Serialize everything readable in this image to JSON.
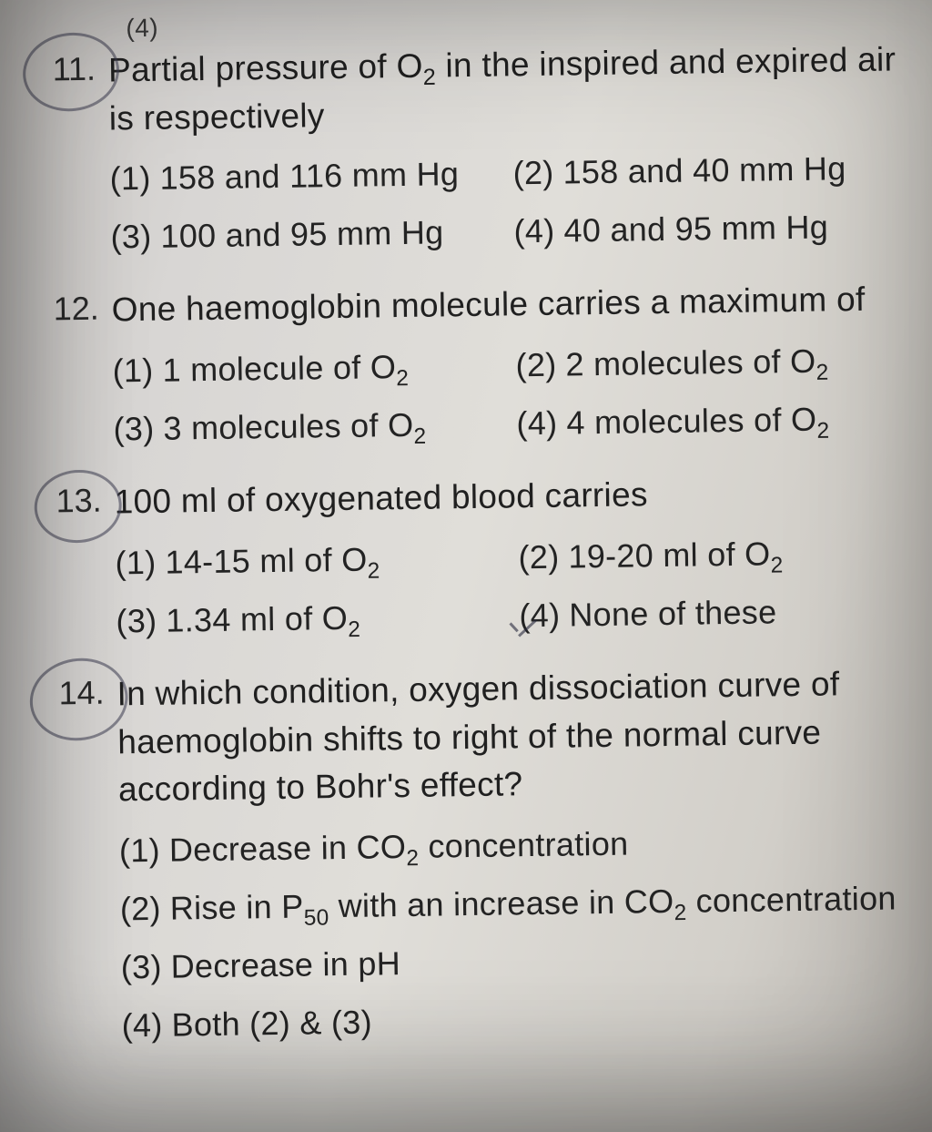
{
  "cutoff_text": "(4)",
  "questions": [
    {
      "number": "11.",
      "circled": true,
      "text_html": "Partial pressure of O<sub>2</sub> in the inspired and expired air is respectively",
      "options": [
        {
          "label": "(1)",
          "text_html": "158 and 116 mm Hg",
          "width": "half"
        },
        {
          "label": "(2)",
          "text_html": "158 and 40 mm Hg",
          "width": "half"
        },
        {
          "label": "(3)",
          "text_html": "100 and 95 mm Hg",
          "width": "half"
        },
        {
          "label": "(4)",
          "text_html": "40 and 95 mm Hg",
          "width": "half"
        }
      ]
    },
    {
      "number": "12.",
      "circled": false,
      "text_html": "One haemoglobin molecule carries a maximum of",
      "options": [
        {
          "label": "(1)",
          "text_html": "1 molecule of O<sub>2</sub>",
          "width": "half"
        },
        {
          "label": "(2)",
          "text_html": "2 molecules of O<sub>2</sub>",
          "width": "half"
        },
        {
          "label": "(3)",
          "text_html": "3 molecules of O<sub>2</sub>",
          "width": "half"
        },
        {
          "label": "(4)",
          "text_html": "4 molecules of O<sub>2</sub>",
          "width": "half"
        }
      ]
    },
    {
      "number": "13.",
      "circled": true,
      "text_html": "100 ml of oxygenated blood carries",
      "options": [
        {
          "label": "(1)",
          "text_html": "14-15 ml of O<sub>2</sub>",
          "width": "half"
        },
        {
          "label": "(2)",
          "text_html": "19-20 ml of O<sub>2</sub>",
          "width": "half"
        },
        {
          "label": "(3)",
          "text_html": "1.34 ml of O<sub>2</sub>",
          "width": "half"
        },
        {
          "label": "(4)",
          "text_html": "None of these",
          "width": "half",
          "tick": true
        }
      ]
    },
    {
      "number": "14.",
      "circled": true,
      "text_html": "In which condition, oxygen dissociation curve of haemoglobin shifts to right of the normal curve according to Bohr's effect?",
      "options": [
        {
          "label": "(1)",
          "text_html": "Decrease in CO<sub>2</sub> concentration",
          "width": "full"
        },
        {
          "label": "(2)",
          "text_html": "Rise in P<sub>50</sub> with an increase in CO<sub>2</sub> concentration",
          "width": "full"
        },
        {
          "label": "(3)",
          "text_html": "Decrease in pH",
          "width": "full"
        },
        {
          "label": "(4)",
          "text_html": "Both (2) & (3)",
          "width": "full"
        }
      ]
    }
  ]
}
